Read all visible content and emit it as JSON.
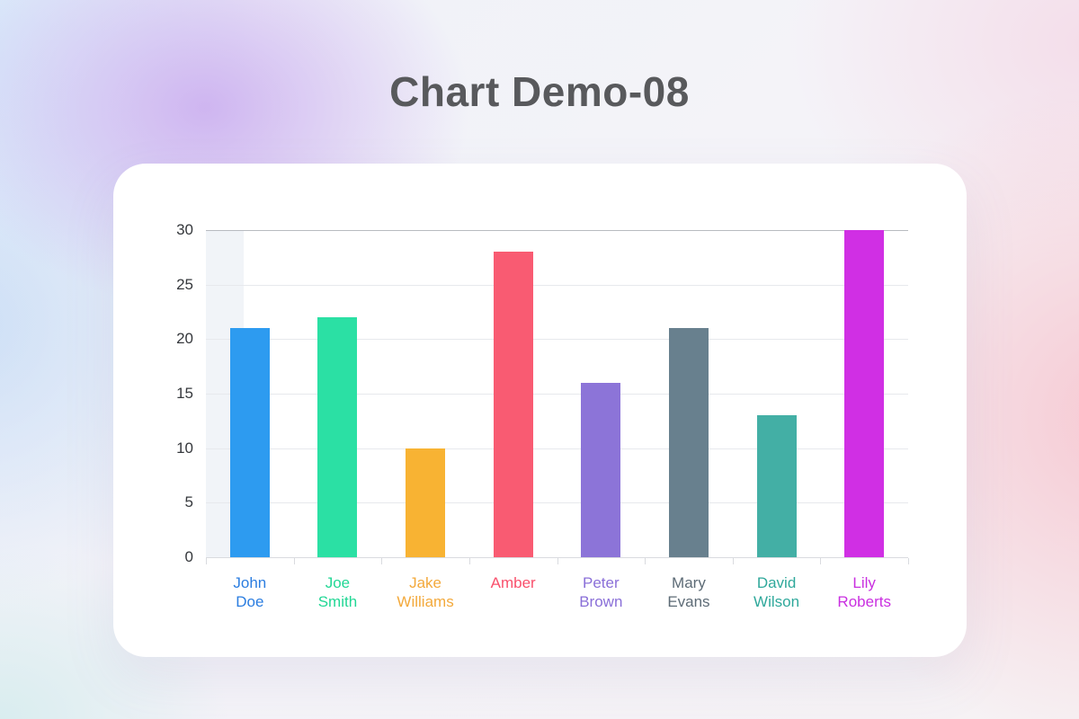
{
  "title": "Chart Demo-08",
  "chart_data": {
    "type": "bar",
    "title": "Chart Demo-08",
    "categories": [
      "John Doe",
      "Joe Smith",
      "Jake Williams",
      "Amber",
      "Peter Brown",
      "Mary Evans",
      "David Wilson",
      "Lily Roberts"
    ],
    "values": [
      21,
      22,
      10,
      28,
      16,
      21,
      13,
      30
    ],
    "bar_colors": [
      "#2D9BF0",
      "#2BE0A4",
      "#F8B333",
      "#F95B72",
      "#8C74D8",
      "#68808E",
      "#43AFA5",
      "#D02FE4"
    ],
    "label_colors": [
      "#2B7DE0",
      "#22D795",
      "#F3A93B",
      "#F9506C",
      "#8A6FD8",
      "#5D6B76",
      "#2FA89B",
      "#C92FE0"
    ],
    "xlabel": "",
    "ylabel": "",
    "ylim": [
      0,
      30
    ],
    "yticks": [
      0,
      5,
      10,
      15,
      20,
      25,
      30
    ],
    "grid": true,
    "legend": false,
    "highlight_band": {
      "category_index": 0,
      "color": "#F1F4F8"
    }
  },
  "colors": {
    "title_text": "#58595C",
    "card_bg": "#FFFFFF",
    "axis_label": "#35383C",
    "gridline": "#E7E9ED",
    "gridline_top": "#B8BBC0",
    "axis_line": "#D9DBDF"
  }
}
